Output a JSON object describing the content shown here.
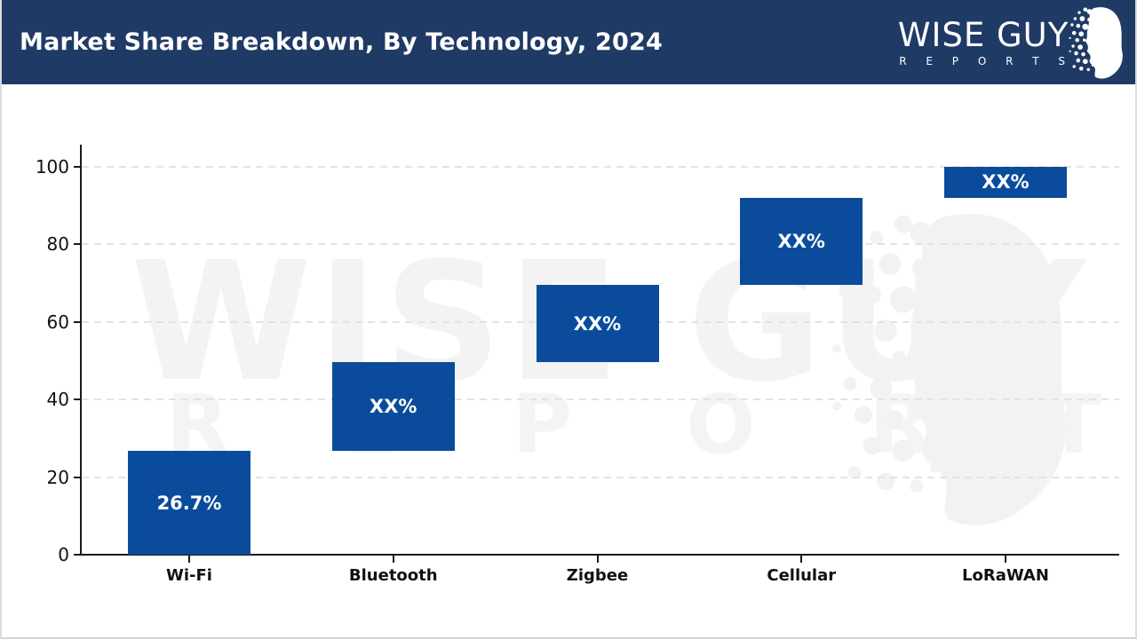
{
  "header": {
    "title": "Market Share Breakdown, By Technology, 2024",
    "bg_color": "#203a66",
    "logo": {
      "line1": "WISE GUY",
      "line2": "R E P O R T S"
    }
  },
  "watermark": {
    "line1": "WISE GUY",
    "line2": "R E P O R T S"
  },
  "chart_data": {
    "type": "bar",
    "subtype": "waterfall",
    "title": "Market Share Breakdown, By Technology, 2024",
    "xlabel": "",
    "ylabel": "",
    "categories": [
      "Wi-Fi",
      "Bluetooth",
      "Zigbee",
      "Cellular",
      "LoRaWAN"
    ],
    "segments": [
      {
        "category": "Wi-Fi",
        "start": 0,
        "end": 26.7,
        "value": 26.7,
        "label": "26.7%"
      },
      {
        "category": "Bluetooth",
        "start": 26.7,
        "end": 49.5,
        "value": 22.8,
        "label": "XX%"
      },
      {
        "category": "Zigbee",
        "start": 49.5,
        "end": 69.4,
        "value": 19.9,
        "label": "XX%"
      },
      {
        "category": "Cellular",
        "start": 69.4,
        "end": 91.9,
        "value": 22.5,
        "label": "XX%"
      },
      {
        "category": "LoRaWAN",
        "start": 91.9,
        "end": 100,
        "value": 8.1,
        "label": "XX%"
      }
    ],
    "y_ticks": [
      0,
      20,
      40,
      60,
      80,
      100
    ],
    "ylim": [
      0,
      105
    ],
    "grid": "horizontal-dashed",
    "legend": "none",
    "colors": {
      "bar": "#0a4c9b",
      "bar_label": "#ffffff",
      "axis": "#1a1a1a",
      "gridline": "#e3e3e3",
      "header_bg": "#203a66",
      "watermark": "#f3f3f3"
    }
  }
}
